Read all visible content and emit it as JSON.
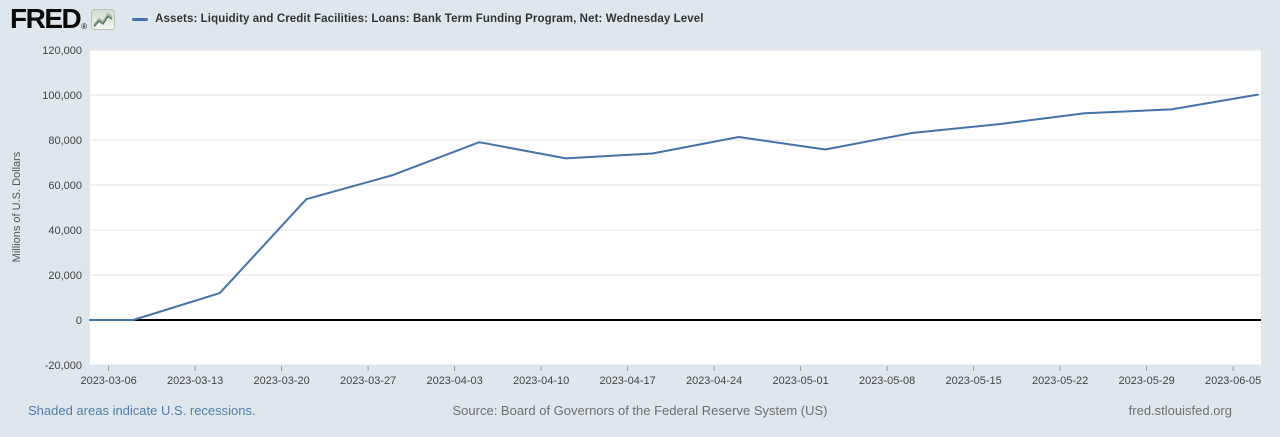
{
  "header": {
    "logo_text": "FRED",
    "registered_mark": "®",
    "legend": {
      "series_label": "Assets: Liquidity and Credit Facilities: Loans: Bank Term Funding Program, Net: Wednesday Level"
    }
  },
  "chart_data": {
    "type": "line",
    "title": "Assets: Liquidity and Credit Facilities: Loans: Bank Term Funding Program, Net: Wednesday Level",
    "xlabel": "",
    "ylabel": "Millions of U.S. Dollars",
    "ylim": [
      -20000,
      120000
    ],
    "y_tick_step": 20000,
    "grid": "horizontal",
    "legend_position": "top-left",
    "zero_baseline": true,
    "x_tick_labels": [
      "2023-03-06",
      "2023-03-13",
      "2023-03-20",
      "2023-03-27",
      "2023-04-03",
      "2023-04-10",
      "2023-04-17",
      "2023-04-24",
      "2023-05-01",
      "2023-05-08",
      "2023-05-15",
      "2023-05-22",
      "2023-05-29",
      "2023-06-05"
    ],
    "series": [
      {
        "name": "Assets: Liquidity and Credit Facilities: Loans: Bank Term Funding Program, Net: Wednesday Level",
        "color": "#4572a7",
        "dates": [
          "2023-03-08",
          "2023-03-15",
          "2023-03-22",
          "2023-03-29",
          "2023-04-05",
          "2023-04-12",
          "2023-04-19",
          "2023-04-26",
          "2023-05-03",
          "2023-05-10",
          "2023-05-17",
          "2023-05-24",
          "2023-05-31",
          "2023-06-07"
        ],
        "values": [
          0,
          11943,
          53669,
          64403,
          79021,
          71837,
          73982,
          81327,
          75778,
          83101,
          87006,
          91907,
          93615,
          100161
        ]
      }
    ]
  },
  "footer": {
    "recessions_note": "Shaded areas indicate U.S. recessions.",
    "source": "Source: Board of Governors of the Federal Reserve System (US)",
    "site": "fred.stlouisfed.org"
  },
  "colors": {
    "background": "#dee7ee",
    "plot_background": "#ffffff",
    "gridline": "#e6e6e6",
    "zero_line": "#000000",
    "series_line": "#4572a7",
    "tick_mark": "#999999",
    "axis_text": "#444444",
    "axis_title_text": "#555555",
    "title_text": "#333333",
    "link_text": "#527ca8",
    "muted_text": "#6e6e6e"
  }
}
